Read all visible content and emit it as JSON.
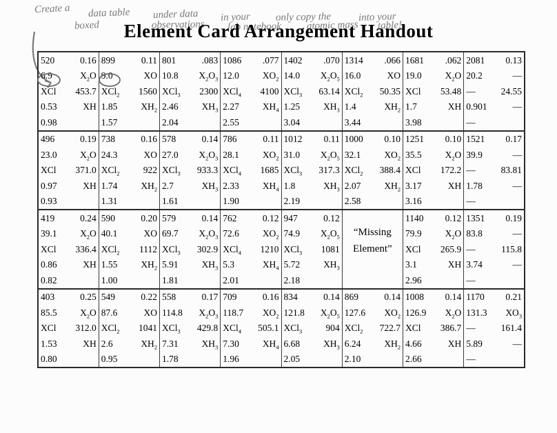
{
  "title": "Element Card Arrangement Handout",
  "handwriting": {
    "h1": "Create a",
    "h2": "data table",
    "h3": "boxed",
    "h4": "under data",
    "h5": "observations",
    "h6": "in your",
    "h7": "lab notebook",
    "h8": "only copy the",
    "h9": "atomic mass",
    "h10": "into your",
    "h11": "table!"
  },
  "missing_label": "“Missing\nElement”",
  "bands": [
    [
      {
        "r0": [
          "520",
          "0.16"
        ],
        "r1": [
          "6.9",
          "X₂O"
        ],
        "r2": [
          "XCl",
          "453.7"
        ],
        "r3": [
          "0.53",
          "XH"
        ],
        "r4": [
          "0.98",
          ""
        ]
      },
      {
        "r0": [
          "899",
          "0.11"
        ],
        "r1": [
          "9.0",
          "XO"
        ],
        "r2": [
          "XCl₂",
          "1560"
        ],
        "r3": [
          "1.85",
          "XH₂"
        ],
        "r4": [
          "1.57",
          ""
        ]
      },
      {
        "r0": [
          "801",
          ".083"
        ],
        "r1": [
          "10.8",
          "X₂O₃"
        ],
        "r2": [
          "XCl₃",
          "2300"
        ],
        "r3": [
          "2.46",
          "XH₃"
        ],
        "r4": [
          "2.04",
          ""
        ]
      },
      {
        "r0": [
          "1086",
          ".077"
        ],
        "r1": [
          "12.0",
          "XO₂"
        ],
        "r2": [
          "XCl₄",
          "4100"
        ],
        "r3": [
          "2.27",
          "XH₄"
        ],
        "r4": [
          "2.55",
          ""
        ]
      },
      {
        "r0": [
          "1402",
          ".070"
        ],
        "r1": [
          "14.0",
          "X₂O₅"
        ],
        "r2": [
          "XCl₃",
          "63.14"
        ],
        "r3": [
          "1.25",
          "XH₃"
        ],
        "r4": [
          "3.04",
          ""
        ]
      },
      {
        "r0": [
          "1314",
          ".066"
        ],
        "r1": [
          "16.0",
          "XO"
        ],
        "r2": [
          "XCl₂",
          "50.35"
        ],
        "r3": [
          "1.4",
          "XH₂"
        ],
        "r4": [
          "3.44",
          ""
        ]
      },
      {
        "r0": [
          "1681",
          ".062"
        ],
        "r1": [
          "19.0",
          "X₂O"
        ],
        "r2": [
          "XCl",
          "53.48"
        ],
        "r3": [
          "1.7",
          "XH"
        ],
        "r4": [
          "3.98",
          ""
        ]
      },
      {
        "r0": [
          "2081",
          "0.13"
        ],
        "r1": [
          "20.2",
          "—"
        ],
        "r2": [
          "—",
          "24.55"
        ],
        "r3": [
          "0.901",
          "—"
        ],
        "r4": [
          "—",
          ""
        ]
      }
    ],
    [
      {
        "r0": [
          "496",
          "0.19"
        ],
        "r1": [
          "23.0",
          "X₂O"
        ],
        "r2": [
          "XCl",
          "371.0"
        ],
        "r3": [
          "0.97",
          "XH"
        ],
        "r4": [
          "0.93",
          ""
        ]
      },
      {
        "r0": [
          "738",
          "0.16"
        ],
        "r1": [
          "24.3",
          "XO"
        ],
        "r2": [
          "XCl₂",
          "922"
        ],
        "r3": [
          "1.74",
          "XH₂"
        ],
        "r4": [
          "1.31",
          ""
        ]
      },
      {
        "r0": [
          "578",
          "0.14"
        ],
        "r1": [
          "27.0",
          "X₂O₃"
        ],
        "r2": [
          "XCl₃",
          "933.3"
        ],
        "r3": [
          "2.7",
          "XH₃"
        ],
        "r4": [
          "1.61",
          ""
        ]
      },
      {
        "r0": [
          "786",
          "0.11"
        ],
        "r1": [
          "28.1",
          "XO₂"
        ],
        "r2": [
          "XCl₄",
          "1685"
        ],
        "r3": [
          "2.33",
          "XH₄"
        ],
        "r4": [
          "1.90",
          ""
        ]
      },
      {
        "r0": [
          "1012",
          "0.11"
        ],
        "r1": [
          "31.0",
          "X₂O₅"
        ],
        "r2": [
          "XCl₃",
          "317.3"
        ],
        "r3": [
          "1.8",
          "XH₃"
        ],
        "r4": [
          "2.19",
          ""
        ]
      },
      {
        "r0": [
          "1000",
          "0.10"
        ],
        "r1": [
          "32.1",
          "XO₂"
        ],
        "r2": [
          "XCl₂",
          "388.4"
        ],
        "r3": [
          "2.07",
          "XH₂"
        ],
        "r4": [
          "2.58",
          ""
        ]
      },
      {
        "r0": [
          "1251",
          "0.10"
        ],
        "r1": [
          "35.5",
          "X₂O"
        ],
        "r2": [
          "XCl",
          "172.2"
        ],
        "r3": [
          "3.17",
          "XH"
        ],
        "r4": [
          "3.16",
          ""
        ]
      },
      {
        "r0": [
          "1521",
          "0.17"
        ],
        "r1": [
          "39.9",
          "—"
        ],
        "r2": [
          "—",
          "83.81"
        ],
        "r3": [
          "1.78",
          "—"
        ],
        "r4": [
          "—",
          ""
        ]
      }
    ],
    [
      {
        "r0": [
          "419",
          "0.24"
        ],
        "r1": [
          "39.1",
          "X₂O"
        ],
        "r2": [
          "XCl",
          "336.4"
        ],
        "r3": [
          "0.86",
          "XH"
        ],
        "r4": [
          "0.82",
          ""
        ]
      },
      {
        "r0": [
          "590",
          "0.20"
        ],
        "r1": [
          "40.1",
          "XO"
        ],
        "r2": [
          "XCl₂",
          "1112"
        ],
        "r3": [
          "1.55",
          "XH₂"
        ],
        "r4": [
          "1.00",
          ""
        ]
      },
      {
        "r0": [
          "579",
          "0.14"
        ],
        "r1": [
          "69.7",
          "X₂O₃"
        ],
        "r2": [
          "XCl₃",
          "302.9"
        ],
        "r3": [
          "5.91",
          "XH₃"
        ],
        "r4": [
          "1.81",
          ""
        ]
      },
      {
        "r0": [
          "762",
          "0.12"
        ],
        "r1": [
          "72.6",
          "XO₂"
        ],
        "r2": [
          "XCl₄",
          "1210"
        ],
        "r3": [
          "5.3",
          "XH₄"
        ],
        "r4": [
          "2.01",
          ""
        ]
      },
      {
        "r0": [
          "947",
          "0.12"
        ],
        "r1": [
          "74.9",
          "X₂O₅"
        ],
        "r2": [
          "XCl₃",
          "1081"
        ],
        "r3": [
          "5.72",
          "XH₃"
        ],
        "r4": [
          "2.18",
          ""
        ]
      },
      {
        "missing": true
      },
      {
        "r0": [
          "1140",
          "0.12"
        ],
        "r1": [
          "79.9",
          "X₂O"
        ],
        "r2": [
          "XCl",
          "265.9"
        ],
        "r3": [
          "3.1",
          "XH"
        ],
        "r4": [
          "2.96",
          ""
        ]
      },
      {
        "r0": [
          "1351",
          "0.19"
        ],
        "r1": [
          "83.8",
          "—"
        ],
        "r2": [
          "—",
          "115.8"
        ],
        "r3": [
          "3.74",
          "—"
        ],
        "r4": [
          "—",
          ""
        ]
      }
    ],
    [
      {
        "r0": [
          "403",
          "0.25"
        ],
        "r1": [
          "85.5",
          "X₂O"
        ],
        "r2": [
          "XCl",
          "312.0"
        ],
        "r3": [
          "1.53",
          "XH"
        ],
        "r4": [
          "0.80",
          ""
        ]
      },
      {
        "r0": [
          "549",
          "0.22"
        ],
        "r1": [
          "87.6",
          "XO"
        ],
        "r2": [
          "XCl₂",
          "1041"
        ],
        "r3": [
          "2.6",
          "XH₂"
        ],
        "r4": [
          "0.95",
          ""
        ]
      },
      {
        "r0": [
          "558",
          "0.17"
        ],
        "r1": [
          "114.8",
          "X₂O₃"
        ],
        "r2": [
          "XCl₃",
          "429.8"
        ],
        "r3": [
          "7.31",
          "XH₃"
        ],
        "r4": [
          "1.78",
          ""
        ]
      },
      {
        "r0": [
          "709",
          "0.16"
        ],
        "r1": [
          "118.7",
          "XO₂"
        ],
        "r2": [
          "XCl₄",
          "505.1"
        ],
        "r3": [
          "7.30",
          "XH₄"
        ],
        "r4": [
          "1.96",
          ""
        ]
      },
      {
        "r0": [
          "834",
          "0.14"
        ],
        "r1": [
          "121.8",
          "X₂O₅"
        ],
        "r2": [
          "XCl₃",
          "904"
        ],
        "r3": [
          "6.68",
          "XH₃"
        ],
        "r4": [
          "2.05",
          ""
        ]
      },
      {
        "r0": [
          "869",
          "0.14"
        ],
        "r1": [
          "127.6",
          "XO₂"
        ],
        "r2": [
          "XCl₂",
          "722.7"
        ],
        "r3": [
          "6.24",
          "XH₂"
        ],
        "r4": [
          "2.10",
          ""
        ]
      },
      {
        "r0": [
          "1008",
          "0.14"
        ],
        "r1": [
          "126.9",
          "X₂O"
        ],
        "r2": [
          "XCl",
          "386.7"
        ],
        "r3": [
          "4.66",
          "XH"
        ],
        "r4": [
          "2.66",
          ""
        ]
      },
      {
        "r0": [
          "1170",
          "0.21"
        ],
        "r1": [
          "131.3",
          "XO₃"
        ],
        "r2": [
          "—",
          "161.4"
        ],
        "r3": [
          "5.89",
          "—"
        ],
        "r4": [
          "—",
          ""
        ]
      }
    ]
  ]
}
